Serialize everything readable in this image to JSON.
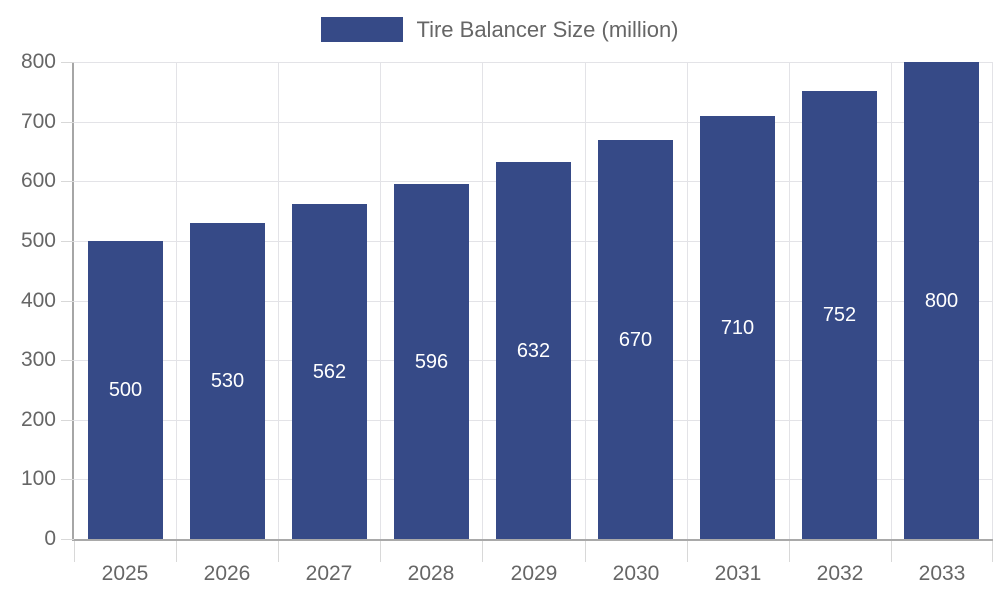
{
  "chart_data": {
    "type": "bar",
    "title": "",
    "legend": {
      "label": "Tire Balancer Size (million)",
      "position": "top-center"
    },
    "categories": [
      "2025",
      "2026",
      "2027",
      "2028",
      "2029",
      "2030",
      "2031",
      "2032",
      "2033"
    ],
    "series": [
      {
        "name": "Tire Balancer Size (million)",
        "values": [
          500,
          530,
          562,
          596,
          632,
          670,
          710,
          752,
          800
        ]
      }
    ],
    "data_labels": [
      "500",
      "530",
      "562",
      "596",
      "632",
      "670",
      "710",
      "752",
      "800"
    ],
    "xlabel": "",
    "ylabel": "",
    "ylim": [
      0,
      800
    ],
    "yticks": [
      0,
      100,
      200,
      300,
      400,
      500,
      600,
      700,
      800
    ],
    "grid": true,
    "legend_position": "top",
    "colors": {
      "bar": "#364a87",
      "axis_line": "#a6a6a6",
      "gridline": "#e3e3e7",
      "tick": "#d8d8d8",
      "axis_text": "#666666",
      "legend_text": "#666666",
      "data_label_text": "#ffffff",
      "background": "#ffffff"
    }
  }
}
